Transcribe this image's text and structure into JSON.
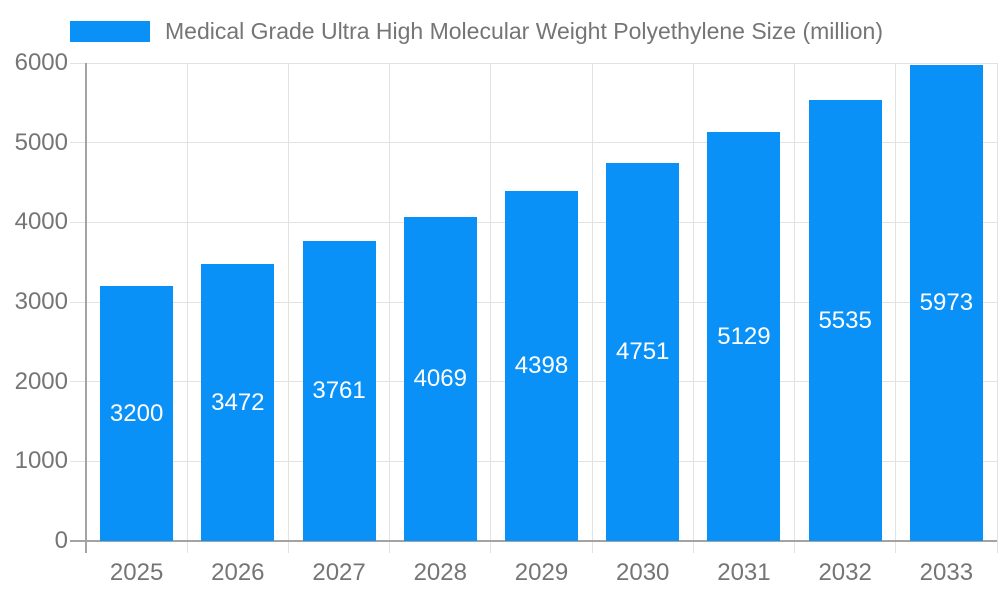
{
  "legend": {
    "label": "Medical Grade Ultra High Molecular Weight Polyethylene Size (million)"
  },
  "chart_data": {
    "type": "bar",
    "title": "Medical Grade Ultra High Molecular Weight Polyethylene Size (million)",
    "categories": [
      "2025",
      "2026",
      "2027",
      "2028",
      "2029",
      "2030",
      "2031",
      "2032",
      "2033"
    ],
    "values": [
      3200,
      3472,
      3761,
      4069,
      4398,
      4751,
      5129,
      5535,
      5973
    ],
    "value_labels": [
      "3200",
      "3472",
      "3761",
      "4069",
      "4398",
      "4751",
      "5129",
      "5535",
      "5973"
    ],
    "xlabel": "",
    "ylabel": "",
    "ylim": [
      0,
      6000
    ],
    "yticks": [
      0,
      1000,
      2000,
      3000,
      4000,
      5000,
      6000
    ],
    "grid": true,
    "legend_position": "top-left",
    "bar_color": "#0a91f8",
    "value_label_color": "#ffffff",
    "axis_text_color": "#757575",
    "grid_color": "#e2e2e2",
    "axis_line_color": "#a3a3a3",
    "background_color": "#ffffff"
  }
}
